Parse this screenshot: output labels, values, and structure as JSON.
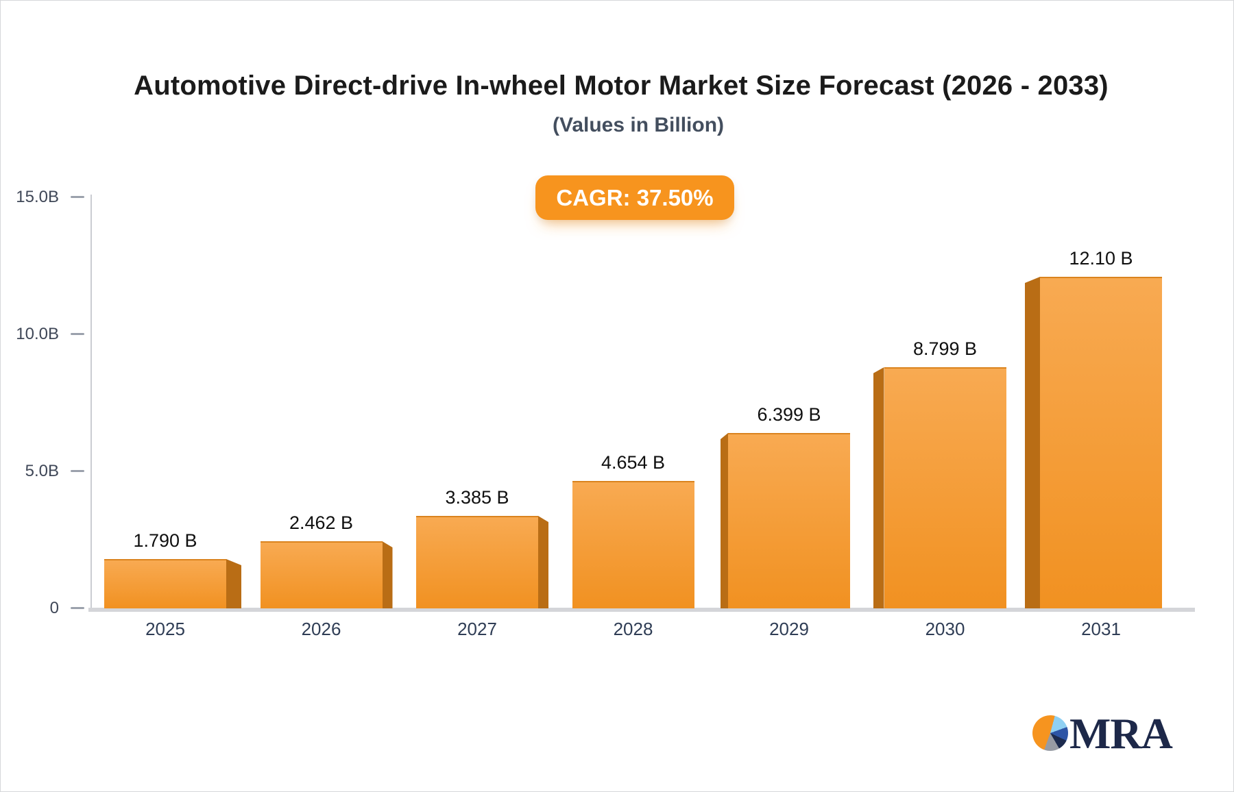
{
  "header": {
    "title": "Automotive Direct-drive In-wheel Motor Market Size Forecast (2026 - 2033)",
    "subtitle": "(Values in Billion)",
    "cagr_badge": {
      "label": "CAGR: 37.50%",
      "bg_color": "#f7941e",
      "text_color": "#ffffff"
    }
  },
  "chart_data": {
    "type": "bar",
    "categories": [
      "2025",
      "2026",
      "2027",
      "2028",
      "2029",
      "2030",
      "2031"
    ],
    "values": [
      1.79,
      2.462,
      3.385,
      4.654,
      6.399,
      8.799,
      12.1
    ],
    "value_labels": [
      "1.790 B",
      "2.462 B",
      "3.385 B",
      "4.654 B",
      "6.399 B",
      "8.799 B",
      "12.10 B"
    ],
    "title": "Automotive Direct-drive In-wheel Motor Market Size Forecast (2026 - 2033)",
    "subtitle": "(Values in Billion)",
    "xlabel": "",
    "ylabel": "",
    "ylim": [
      0,
      15
    ],
    "yticks": [
      {
        "value": 0,
        "label": "0"
      },
      {
        "value": 5,
        "label": "5.0B"
      },
      {
        "value": 10,
        "label": "10.0B"
      },
      {
        "value": 15,
        "label": "15.0B"
      }
    ],
    "grid": false,
    "legend": false,
    "style": {
      "bar_face_top": "#f8aa52",
      "bar_face_bottom": "#f19121",
      "bar_edge": "#da831e",
      "bar_side": "#b96d15",
      "axis_line": "#caccd2",
      "baseline": "#d4d5d9",
      "tick_dash": "#9ba1ac",
      "tick_text": "#3f4757",
      "category_text": "#2f3d55",
      "value_text": "#101010"
    }
  },
  "logo": {
    "text": "MRA",
    "text_color": "#1d2849",
    "pie_orange": "#f6941f",
    "pie_lightblue": "#8fd0f2",
    "pie_royal": "#2d55a6",
    "pie_navy": "#1c2b4e",
    "pie_gray": "#979ba3"
  }
}
